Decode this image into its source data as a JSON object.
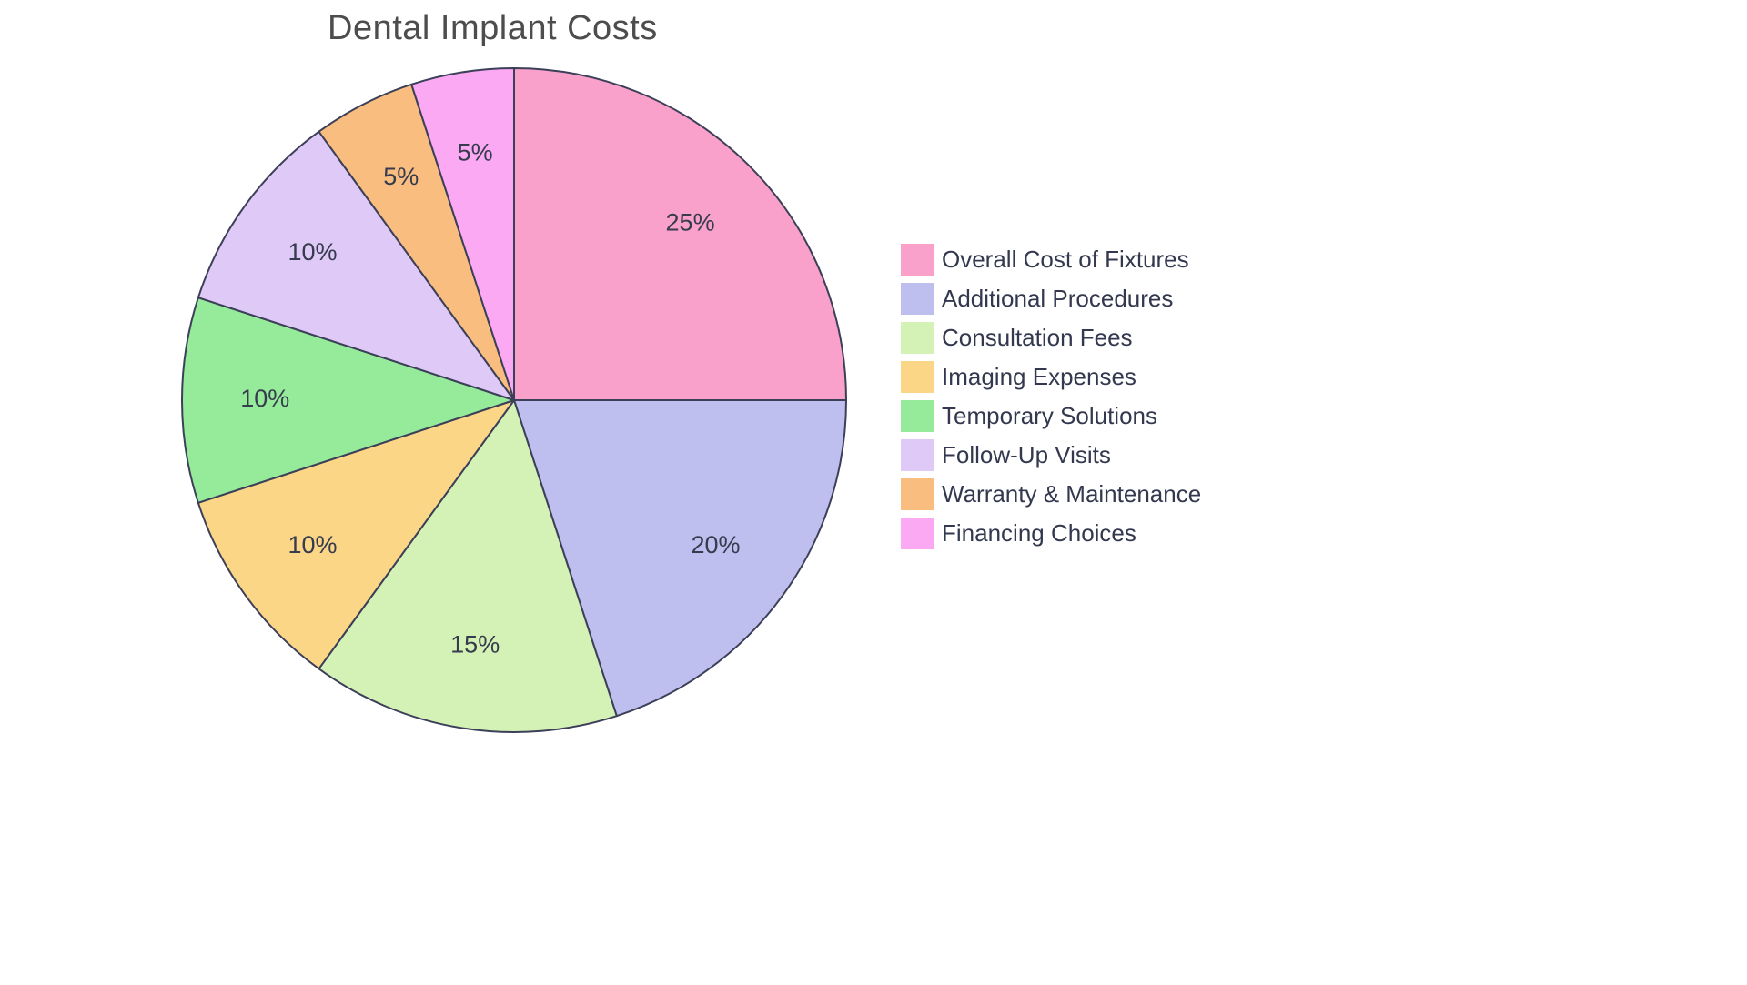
{
  "chart_data": {
    "type": "pie",
    "title": "Dental Implant Costs",
    "categories": [
      "Overall Cost of Fixtures",
      "Additional Procedures",
      "Consultation Fees",
      "Imaging Expenses",
      "Temporary Solutions",
      "Follow-Up Visits",
      "Warranty & Maintenance",
      "Financing Choices"
    ],
    "values": [
      25,
      20,
      15,
      10,
      10,
      10,
      5,
      5
    ],
    "percent_labels": [
      "25%",
      "20%",
      "15%",
      "10%",
      "10%",
      "10%",
      "5%",
      "5%"
    ],
    "colors": [
      "#F9A1CB",
      "#BEBFEE",
      "#D5F2B6",
      "#FBD687",
      "#96EB9B",
      "#DFC9F7",
      "#F9BE7F",
      "#FCA9F3"
    ],
    "start_angle_deg": 0,
    "direction": "clockwise",
    "legend_position": "right",
    "slice_border_color": "#3C3F58",
    "label_color": "#363B4E"
  }
}
